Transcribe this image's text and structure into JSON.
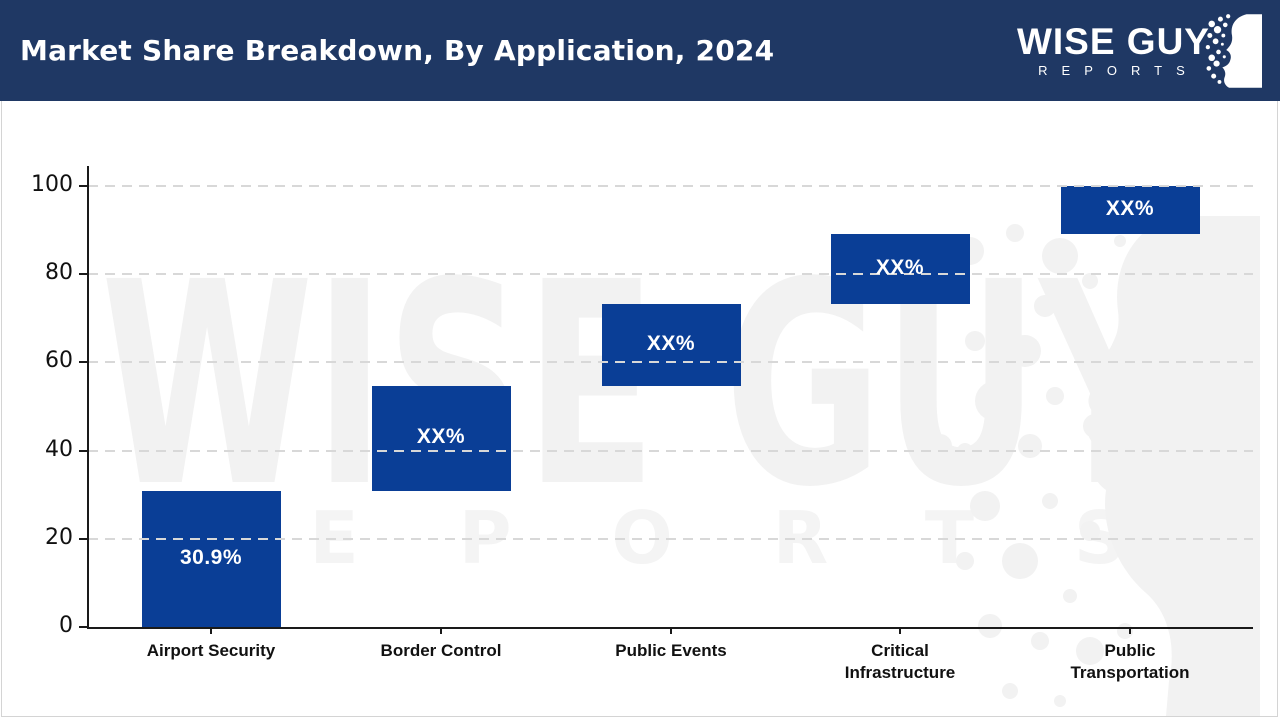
{
  "header": {
    "title": "Market Share Breakdown, By Application, 2024",
    "background_color": "#1f3864",
    "logo": {
      "brand": "WISE GUY",
      "tagline": "REPORTS"
    }
  },
  "watermark": {
    "line1": "WISE GUY",
    "line2": "REPORTS"
  },
  "chart_data": {
    "type": "bar",
    "subtype": "waterfall",
    "title": "Market Share Breakdown, By Application, 2024",
    "categories": [
      "Airport Security",
      "Border Control",
      "Public Events",
      "Critical Infrastructure",
      "Public Transportation"
    ],
    "segments": [
      {
        "category": "Airport Security",
        "start": 0,
        "end": 30.9,
        "value": 30.9,
        "label": "30.9%"
      },
      {
        "category": "Border Control",
        "start": 30.9,
        "end": 54.6,
        "value": 23.7,
        "label": "XX%"
      },
      {
        "category": "Public Events",
        "start": 54.6,
        "end": 73.2,
        "value": 18.6,
        "label": "XX%"
      },
      {
        "category": "Critical Infrastructure",
        "start": 73.2,
        "end": 89.1,
        "value": 15.9,
        "label": "XX%"
      },
      {
        "category": "Public Transportation",
        "start": 89.1,
        "end": 100,
        "value": 10.9,
        "label": "XX%"
      }
    ],
    "xlabel": "",
    "ylabel": "",
    "ylim": [
      0,
      104.5
    ],
    "yticks": [
      0,
      20,
      40,
      60,
      80,
      100
    ],
    "grid": "horizontal dashed",
    "grid_color": "#d8d8d8",
    "axis_color": "#1a1a1a",
    "bar_color": "#0a3e96",
    "bar_label_color": "#ffffff",
    "legend": "none"
  }
}
